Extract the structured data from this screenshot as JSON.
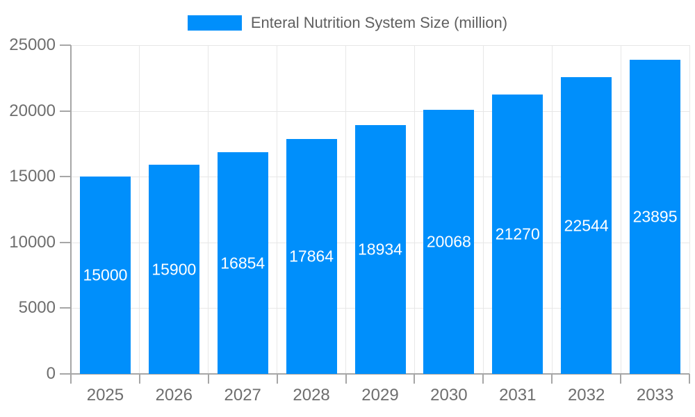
{
  "chart_data": {
    "type": "bar",
    "title": "Enteral Nutrition System Size (million)",
    "categories": [
      "2025",
      "2026",
      "2027",
      "2028",
      "2029",
      "2030",
      "2031",
      "2032",
      "2033"
    ],
    "series": [
      {
        "name": "Enteral Nutrition System Size (million)",
        "values": [
          15000,
          15900,
          16854,
          17864,
          18934,
          20068,
          21270,
          22544,
          23895
        ]
      }
    ],
    "values": [
      15000,
      15900,
      16854,
      17864,
      18934,
      20068,
      21270,
      22544,
      23895
    ],
    "value_labels": [
      "15000",
      "15900",
      "16854",
      "17864",
      "18934",
      "20068",
      "21270",
      "22544",
      "23895"
    ],
    "xlabel": "",
    "ylabel": "",
    "ylim": [
      0,
      25000
    ],
    "yticks": [
      0,
      5000,
      10000,
      15000,
      20000,
      25000
    ],
    "ytick_labels": [
      "0",
      "5000",
      "10000",
      "15000",
      "20000",
      "25000"
    ],
    "grid": true,
    "legend_position": "top",
    "value_label_position": "inside-center",
    "colors": {
      "bar": "#008FFB",
      "grid": "#e7e7e7",
      "axis": "#a6a6a6",
      "axis_label_text": "#6e6e6e",
      "legend_text": "#5f5f5f",
      "value_label_text": "#ffffff",
      "background": "#ffffff"
    }
  }
}
